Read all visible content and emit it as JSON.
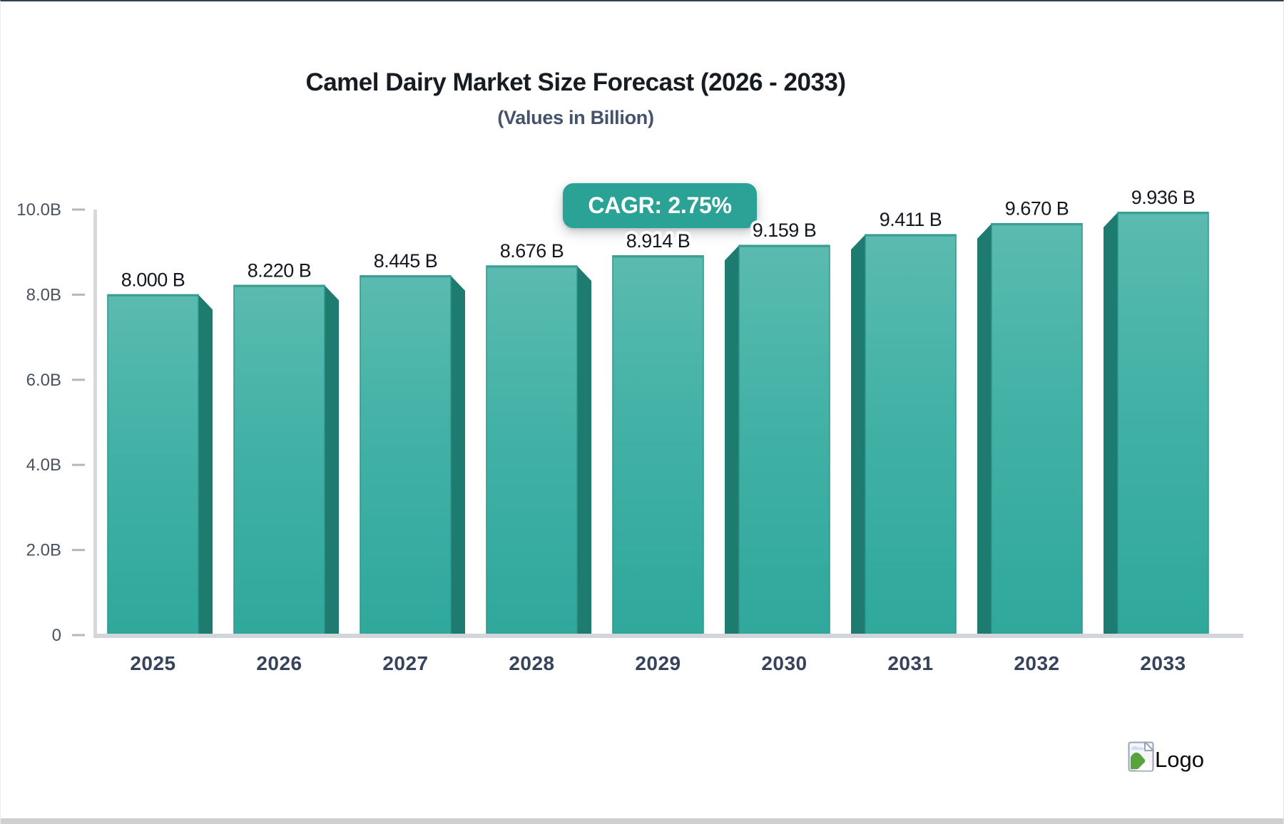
{
  "header": {
    "title": "Camel Dairy Market Size Forecast (2026 - 2033)",
    "subtitle": "(Values in Billion)"
  },
  "cagr_badge": {
    "label": "CAGR: 2.75%"
  },
  "logo": {
    "text": "Logo"
  },
  "chart_data": {
    "type": "bar",
    "title": "Camel Dairy Market Size Forecast (2026 - 2033)",
    "subtitle": "(Values in Billion)",
    "categories": [
      "2025",
      "2026",
      "2027",
      "2028",
      "2029",
      "2030",
      "2031",
      "2032",
      "2033"
    ],
    "values": [
      8.0,
      8.22,
      8.445,
      8.676,
      8.914,
      9.159,
      9.411,
      9.67,
      9.936
    ],
    "value_labels": [
      "8.000 B",
      "8.220 B",
      "8.445 B",
      "8.676 B",
      "8.914 B",
      "9.159 B",
      "9.411 B",
      "9.670 B",
      "9.936 B"
    ],
    "annotation": "CAGR: 2.75%",
    "xlabel": "",
    "ylabel": "",
    "ylim": [
      0,
      10
    ],
    "yticks": {
      "labels": [
        "10.0B",
        "8.0B",
        "6.0B",
        "4.0B",
        "2.0B",
        "0"
      ],
      "values": [
        10,
        8,
        6,
        4,
        2,
        0
      ]
    },
    "grid": false,
    "legend": "none",
    "colors": {
      "bar_face_top": "#5bbbb0",
      "bar_face_mid": "#42b1a6",
      "bar_face_bottom": "#2fa89b",
      "bar_side": "#1e7b70",
      "bar_edge": "#2e968b",
      "bar_top_edge": "#3c9e94",
      "axis_line": "#d7d9dd",
      "baseline": "#d2d5d9",
      "tick_dash": "#b3b7bf",
      "ytick_label": "#4a5260",
      "year_label": "#36435a",
      "value_label": "#131720",
      "badge_bg": "#2aa296",
      "badge_text": "#ffffff"
    }
  }
}
